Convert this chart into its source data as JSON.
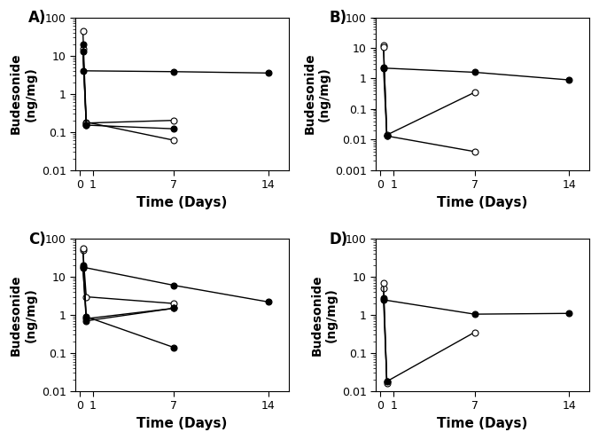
{
  "panels": {
    "A": {
      "label": "A)",
      "ylim": [
        0.01,
        100
      ],
      "yticks": [
        0.01,
        0.1,
        1,
        10,
        100
      ],
      "xlim": [
        -0.3,
        15.5
      ],
      "xticks": [
        0,
        1,
        7,
        14
      ],
      "xticklabels": [
        "0",
        "1",
        "7",
        "14"
      ],
      "series": [
        {
          "x": [
            0.25,
            7,
            14
          ],
          "y": [
            4.0,
            3.8,
            3.5
          ],
          "marker": "o",
          "filled": true,
          "lw": 1.0
        },
        {
          "x": [
            0.25,
            0.5,
            7
          ],
          "y": [
            45,
            0.18,
            0.06
          ],
          "marker": "o",
          "filled": false,
          "lw": 1.0
        },
        {
          "x": [
            0.25,
            0.5,
            7
          ],
          "y": [
            15,
            0.17,
            0.2
          ],
          "marker": "o",
          "filled": false,
          "lw": 1.0
        },
        {
          "x": [
            0.25,
            0.5,
            7
          ],
          "y": [
            20,
            0.15,
            0.12
          ],
          "marker": "o",
          "filled": true,
          "lw": 1.0
        },
        {
          "x": [
            0.25,
            0.5
          ],
          "y": [
            13,
            0.15
          ],
          "marker": "o",
          "filled": true,
          "lw": 1.0
        }
      ]
    },
    "B": {
      "label": "B)",
      "ylim": [
        0.001,
        100
      ],
      "yticks": [
        0.001,
        0.01,
        0.1,
        1,
        10,
        100
      ],
      "xlim": [
        -0.3,
        15.5
      ],
      "xticks": [
        0,
        1,
        7,
        14
      ],
      "xticklabels": [
        "0",
        "1",
        "7",
        "14"
      ],
      "series": [
        {
          "x": [
            0.25,
            7,
            14
          ],
          "y": [
            2.2,
            1.6,
            0.9
          ],
          "marker": "o",
          "filled": true,
          "lw": 1.0
        },
        {
          "x": [
            0.25,
            0.5,
            7
          ],
          "y": [
            12,
            0.014,
            0.35
          ],
          "marker": "o",
          "filled": false,
          "lw": 1.0
        },
        {
          "x": [
            0.25,
            0.5,
            7
          ],
          "y": [
            11,
            0.013,
            0.004
          ],
          "marker": "o",
          "filled": false,
          "lw": 1.0
        },
        {
          "x": [
            0.25,
            0.5
          ],
          "y": [
            2.3,
            0.013
          ],
          "marker": "o",
          "filled": true,
          "lw": 1.0
        }
      ]
    },
    "C": {
      "label": "C)",
      "ylim": [
        0.01,
        100
      ],
      "yticks": [
        0.01,
        0.1,
        1,
        10,
        100
      ],
      "xlim": [
        -0.3,
        15.5
      ],
      "xticks": [
        0,
        1,
        7,
        14
      ],
      "xticklabels": [
        "0",
        "1",
        "7",
        "14"
      ],
      "series": [
        {
          "x": [
            0.25,
            7,
            14
          ],
          "y": [
            18,
            6.0,
            2.2
          ],
          "marker": "o",
          "filled": true,
          "lw": 1.0
        },
        {
          "x": [
            0.25,
            0.5,
            7
          ],
          "y": [
            50,
            3.0,
            2.0
          ],
          "marker": "o",
          "filled": false,
          "lw": 1.0
        },
        {
          "x": [
            0.25,
            0.5,
            7
          ],
          "y": [
            55,
            0.8,
            1.5
          ],
          "marker": "o",
          "filled": false,
          "lw": 1.0
        },
        {
          "x": [
            0.25,
            0.5,
            7
          ],
          "y": [
            17,
            0.9,
            0.14
          ],
          "marker": "o",
          "filled": true,
          "lw": 1.0
        },
        {
          "x": [
            0.25,
            0.5,
            7
          ],
          "y": [
            20,
            0.7,
            1.5
          ],
          "marker": "o",
          "filled": true,
          "lw": 1.0
        }
      ]
    },
    "D": {
      "label": "D)",
      "ylim": [
        0.01,
        100
      ],
      "yticks": [
        0.01,
        0.1,
        1,
        10,
        100
      ],
      "xlim": [
        -0.3,
        15.5
      ],
      "xticks": [
        0,
        1,
        7,
        14
      ],
      "xticklabels": [
        "0",
        "1",
        "7",
        "14"
      ],
      "series": [
        {
          "x": [
            0.25,
            7,
            14
          ],
          "y": [
            2.5,
            1.05,
            1.1
          ],
          "marker": "o",
          "filled": true,
          "lw": 1.0
        },
        {
          "x": [
            0.25,
            0.5,
            7
          ],
          "y": [
            5.0,
            0.018,
            0.35
          ],
          "marker": "o",
          "filled": false,
          "lw": 1.0
        },
        {
          "x": [
            0.25,
            0.5
          ],
          "y": [
            7.0,
            0.016
          ],
          "marker": "o",
          "filled": false,
          "lw": 1.0
        },
        {
          "x": [
            0.25,
            0.5
          ],
          "y": [
            2.8,
            0.018
          ],
          "marker": "o",
          "filled": true,
          "lw": 1.0
        }
      ]
    }
  },
  "xlabel": "Time (Days)",
  "ylabel": "Budesonide\n(ng/mg)",
  "line_color": "black",
  "bg_color": "white",
  "label_fontsize": 12,
  "tick_fontsize": 9,
  "axis_label_fontsize": 10,
  "xlabel_fontsize": 11
}
